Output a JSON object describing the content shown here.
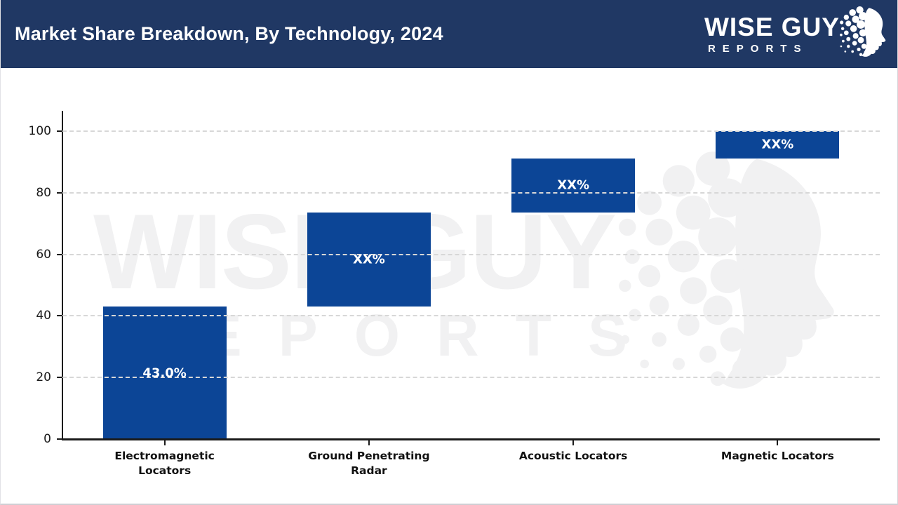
{
  "header": {
    "title": "Market Share Breakdown, By Technology, 2024",
    "bg_color": "#203864",
    "logo": {
      "line1": "WISE GUY",
      "line2": "REPORTS"
    }
  },
  "watermark": {
    "line1": "WISE GUY",
    "line2": "REPORTS"
  },
  "chart_data": {
    "type": "bar",
    "subtype": "waterfall",
    "title": "Market Share Breakdown, By Technology, 2024",
    "xlabel": "",
    "ylabel": "",
    "categories": [
      "Electromagnetic\nLocators",
      "Ground Penetrating\nRadar",
      "Acoustic Locators",
      "Magnetic Locators"
    ],
    "segments": [
      {
        "category": "Electromagnetic\nLocators",
        "start": 0,
        "end": 43.0,
        "value": 43.0,
        "label": "43.0%"
      },
      {
        "category": "Ground Penetrating\nRadar",
        "start": 43.0,
        "end": 73.5,
        "value": 30.5,
        "label": "XX%"
      },
      {
        "category": "Acoustic Locators",
        "start": 73.5,
        "end": 91.2,
        "value": 17.7,
        "label": "XX%"
      },
      {
        "category": "Magnetic Locators",
        "start": 91.2,
        "end": 100.0,
        "value": 8.8,
        "label": "XX%"
      }
    ],
    "y_ticks": [
      0,
      20,
      40,
      60,
      80,
      100
    ],
    "ylim": [
      0,
      106
    ],
    "grid": "dashed-horizontal",
    "legend": "none",
    "bar_color": "#0c4596",
    "bar_label_color": "#ffffff",
    "axis_color": "#1a1a1a",
    "gridline_color": "#d7d7d7",
    "header_color": "#203864",
    "watermark_color": "#f1f1f2"
  }
}
